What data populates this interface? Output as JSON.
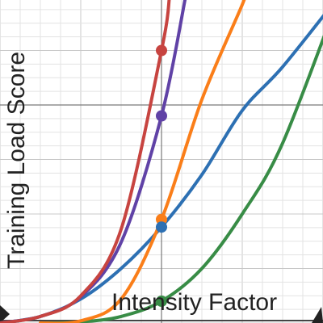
{
  "chart_data": {
    "type": "line",
    "title": "",
    "xlabel": "Intensity Factor",
    "ylabel": "Training Load Score",
    "xlim": [
      -1,
      1
    ],
    "ylim": [
      0,
      3
    ],
    "x_ticks": [
      -1,
      -0.5,
      0,
      0.5,
      1
    ],
    "y_ticks": [
      0,
      0.5,
      1,
      1.5,
      2,
      2.5,
      3
    ],
    "grid": true,
    "legend": "none",
    "series": [
      {
        "color": "#c74440",
        "x": [
          -1,
          -0.75,
          -0.5,
          -0.25,
          0,
          0.05
        ],
        "y": [
          0,
          0.06,
          0.25,
          0.86,
          2.5,
          3.0
        ]
      },
      {
        "color": "#6042a6",
        "x": [
          -1,
          -0.75,
          -0.5,
          -0.25,
          0,
          0.15
        ],
        "y": [
          0,
          0.06,
          0.24,
          0.74,
          1.9,
          3.0
        ]
      },
      {
        "color": "#fa7e19",
        "x": [
          -0.75,
          -0.5,
          -0.25,
          0,
          0.25,
          0.5,
          0.51
        ],
        "y": [
          0,
          0.02,
          0.22,
          0.95,
          2.05,
          2.92,
          3.0
        ]
      },
      {
        "color": "#2d70b3",
        "x": [
          -1,
          -0.75,
          -0.5,
          -0.25,
          0,
          0.25,
          0.5,
          0.75,
          1.1
        ],
        "y": [
          0,
          0.06,
          0.22,
          0.5,
          0.88,
          1.36,
          1.95,
          2.35,
          3.0
        ]
      },
      {
        "color": "#388c46",
        "x": [
          -0.75,
          -0.5,
          -0.25,
          0,
          0.25,
          0.5,
          0.75,
          1.1
        ],
        "y": [
          0,
          0.01,
          0.06,
          0.2,
          0.5,
          1.0,
          1.65,
          3.0
        ]
      }
    ],
    "points": [
      {
        "x": 0,
        "y": 2.5,
        "color": "#c74440"
      },
      {
        "x": 0,
        "y": 1.9,
        "color": "#6042a6"
      },
      {
        "x": 0,
        "y": 0.95,
        "color": "#fa7e19"
      },
      {
        "x": 0,
        "y": 0.88,
        "color": "#2d70b3"
      },
      {
        "x": 0,
        "y": 0.2,
        "color": "#388c46"
      }
    ]
  }
}
